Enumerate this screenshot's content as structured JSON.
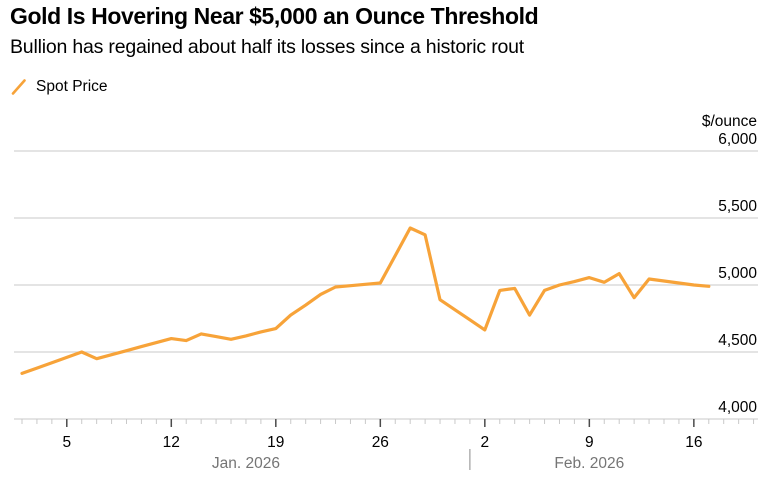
{
  "header": {
    "title": "Gold Is Hovering Near $5,000 an Ounce Threshold",
    "subtitle": "Bullion has regained about half its losses since a historic rout"
  },
  "legend": {
    "items": [
      {
        "label": "Spot Price",
        "icon": "line-slash-icon",
        "color": "#F7A339"
      }
    ]
  },
  "colors": {
    "accent_orange": "#F7A339",
    "gridline": "#D4D4D4",
    "minor_tick": "#C9C9C9",
    "major_tick": "#4B4B4B",
    "axis_text": "#000000",
    "month_text": "#757575",
    "separator": "#8A8A8A",
    "background": "#FFFFFF"
  },
  "chart_data": {
    "type": "line",
    "title": "Gold Is Hovering Near $5,000 an Ounce Threshold",
    "subtitle": "Bullion has regained about half its losses since a historic rout",
    "unit_label": "$/ounce",
    "legend_position": "top-left",
    "grid": "horizontal",
    "x": [
      "Jan 2",
      "Jan 3",
      "Jan 4",
      "Jan 5",
      "Jan 6",
      "Jan 7",
      "Jan 8",
      "Jan 9",
      "Jan 10",
      "Jan 11",
      "Jan 12",
      "Jan 13",
      "Jan 14",
      "Jan 15",
      "Jan 16",
      "Jan 17",
      "Jan 18",
      "Jan 19",
      "Jan 20",
      "Jan 21",
      "Jan 22",
      "Jan 23",
      "Jan 24",
      "Jan 25",
      "Jan 26",
      "Jan 27",
      "Jan 28",
      "Jan 29",
      "Jan 30",
      "Jan 31",
      "Feb 1",
      "Feb 2",
      "Feb 3",
      "Feb 4",
      "Feb 5",
      "Feb 6",
      "Feb 7",
      "Feb 8",
      "Feb 9",
      "Feb 10",
      "Feb 11",
      "Feb 12",
      "Feb 13",
      "Feb 14",
      "Feb 15",
      "Feb 16",
      "Feb 17"
    ],
    "series": [
      {
        "name": "Spot Price",
        "color": "#F7A339",
        "values": [
          4340,
          4380,
          4420,
          4460,
          4500,
          4450,
          4480,
          4510,
          4540,
          4570,
          4600,
          4585,
          4635,
          4615,
          4595,
          4620,
          4650,
          4675,
          4775,
          4850,
          4930,
          4985,
          4995,
          5005,
          5015,
          5220,
          5425,
          5375,
          4890,
          4815,
          4740,
          4665,
          4960,
          4975,
          4775,
          4960,
          5000,
          5025,
          5055,
          5020,
          5085,
          4905,
          5045,
          5030,
          5015,
          5000,
          4990
        ]
      }
    ],
    "y_axis": {
      "range": [
        4000,
        6000
      ],
      "ticks": [
        4000,
        4500,
        5000,
        5500,
        6000
      ],
      "tick_labels": [
        "4,000",
        "4,500",
        "5,000",
        "5,500",
        "6,000"
      ]
    },
    "x_axis": {
      "major_tick_dates": [
        "Jan 5",
        "Jan 12",
        "Jan 19",
        "Jan 26",
        "Feb 2",
        "Feb 9",
        "Feb 16"
      ],
      "major_tick_labels": [
        "5",
        "12",
        "19",
        "26",
        "2",
        "9",
        "16"
      ],
      "month_labels": [
        "Jan. 2026",
        "Feb. 2026"
      ],
      "month_boundary_date": "Feb 1"
    }
  }
}
